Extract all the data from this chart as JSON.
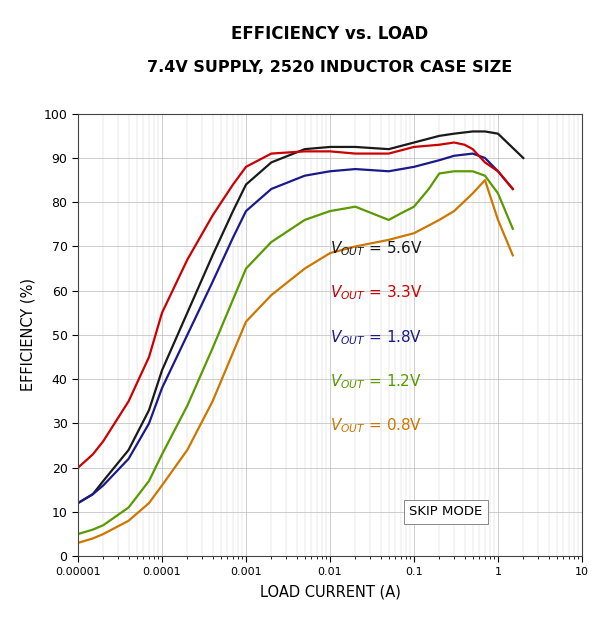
{
  "title_line1": "EFFICIENCY vs. LOAD",
  "title_line2": "7.4V SUPPLY, 2520 INDUCTOR CASE SIZE",
  "xlabel": "LOAD CURRENT (A)",
  "ylabel": "EFFICIENCY (%)",
  "xlim": [
    1e-05,
    10
  ],
  "ylim": [
    0,
    100
  ],
  "yticks": [
    0,
    10,
    20,
    30,
    40,
    50,
    60,
    70,
    80,
    90,
    100
  ],
  "skip_mode_label": "SKIP MODE",
  "legend_entries": [
    {
      "text": "$V_{OUT}$ = 5.6V",
      "color": "#1a1a1a"
    },
    {
      "text": "$V_{OUT}$ = 3.3V",
      "color": "#cc0000"
    },
    {
      "text": "$V_{OUT}$ = 1.8V",
      "color": "#1a1a8b"
    },
    {
      "text": "$V_{OUT}$ = 1.2V",
      "color": "#5a9a00"
    },
    {
      "text": "$V_{OUT}$ = 0.8V",
      "color": "#cc7700"
    }
  ],
  "curves": {
    "5.6V": {
      "color": "#1a1a1a",
      "x": [
        1e-05,
        1.5e-05,
        2e-05,
        4e-05,
        7e-05,
        0.0001,
        0.0002,
        0.0004,
        0.0007,
        0.001,
        0.002,
        0.005,
        0.01,
        0.02,
        0.05,
        0.1,
        0.2,
        0.3,
        0.5,
        0.7,
        1.0,
        2.0
      ],
      "y": [
        12,
        14,
        17,
        24,
        33,
        42,
        55,
        68,
        78,
        84,
        89,
        92,
        92.5,
        92.5,
        92,
        93.5,
        95,
        95.5,
        96,
        96,
        95.5,
        90
      ]
    },
    "3.3V": {
      "color": "#cc0000",
      "x": [
        1e-05,
        1.5e-05,
        2e-05,
        4e-05,
        7e-05,
        0.0001,
        0.0002,
        0.0004,
        0.0007,
        0.001,
        0.002,
        0.005,
        0.01,
        0.02,
        0.05,
        0.1,
        0.2,
        0.3,
        0.4,
        0.5,
        0.7,
        1.0,
        1.5
      ],
      "y": [
        20,
        23,
        26,
        35,
        45,
        55,
        67,
        77,
        84,
        88,
        91,
        91.5,
        91.5,
        91,
        91,
        92.5,
        93,
        93.5,
        93,
        92,
        89,
        87,
        83
      ]
    },
    "1.8V": {
      "color": "#1a1a8b",
      "x": [
        1e-05,
        1.5e-05,
        2e-05,
        4e-05,
        7e-05,
        0.0001,
        0.0002,
        0.0004,
        0.0007,
        0.001,
        0.002,
        0.005,
        0.01,
        0.02,
        0.05,
        0.1,
        0.2,
        0.3,
        0.5,
        0.7,
        1.0,
        1.5
      ],
      "y": [
        12,
        14,
        16,
        22,
        30,
        38,
        50,
        62,
        72,
        78,
        83,
        86,
        87,
        87.5,
        87,
        88,
        89.5,
        90.5,
        91,
        90,
        87,
        83
      ]
    },
    "1.2V": {
      "color": "#5a9a00",
      "x": [
        1e-05,
        1.5e-05,
        2e-05,
        4e-05,
        7e-05,
        0.0001,
        0.0002,
        0.0004,
        0.0007,
        0.001,
        0.002,
        0.005,
        0.01,
        0.02,
        0.05,
        0.07,
        0.1,
        0.15,
        0.2,
        0.3,
        0.5,
        0.7,
        1.0,
        1.5
      ],
      "y": [
        5,
        6,
        7,
        11,
        17,
        23,
        34,
        47,
        58,
        65,
        71,
        76,
        78,
        79,
        76,
        77.5,
        79,
        83,
        86.5,
        87,
        87,
        86,
        82,
        74
      ]
    },
    "0.8V": {
      "color": "#cc7700",
      "x": [
        1e-05,
        1.5e-05,
        2e-05,
        4e-05,
        7e-05,
        0.0001,
        0.0002,
        0.0004,
        0.0007,
        0.001,
        0.002,
        0.005,
        0.01,
        0.02,
        0.05,
        0.1,
        0.2,
        0.3,
        0.5,
        0.7,
        1.0,
        1.5
      ],
      "y": [
        3,
        4,
        5,
        8,
        12,
        16,
        24,
        35,
        46,
        53,
        59,
        65,
        68.5,
        70,
        71.5,
        73,
        76,
        78,
        82,
        85,
        76,
        68
      ]
    }
  }
}
